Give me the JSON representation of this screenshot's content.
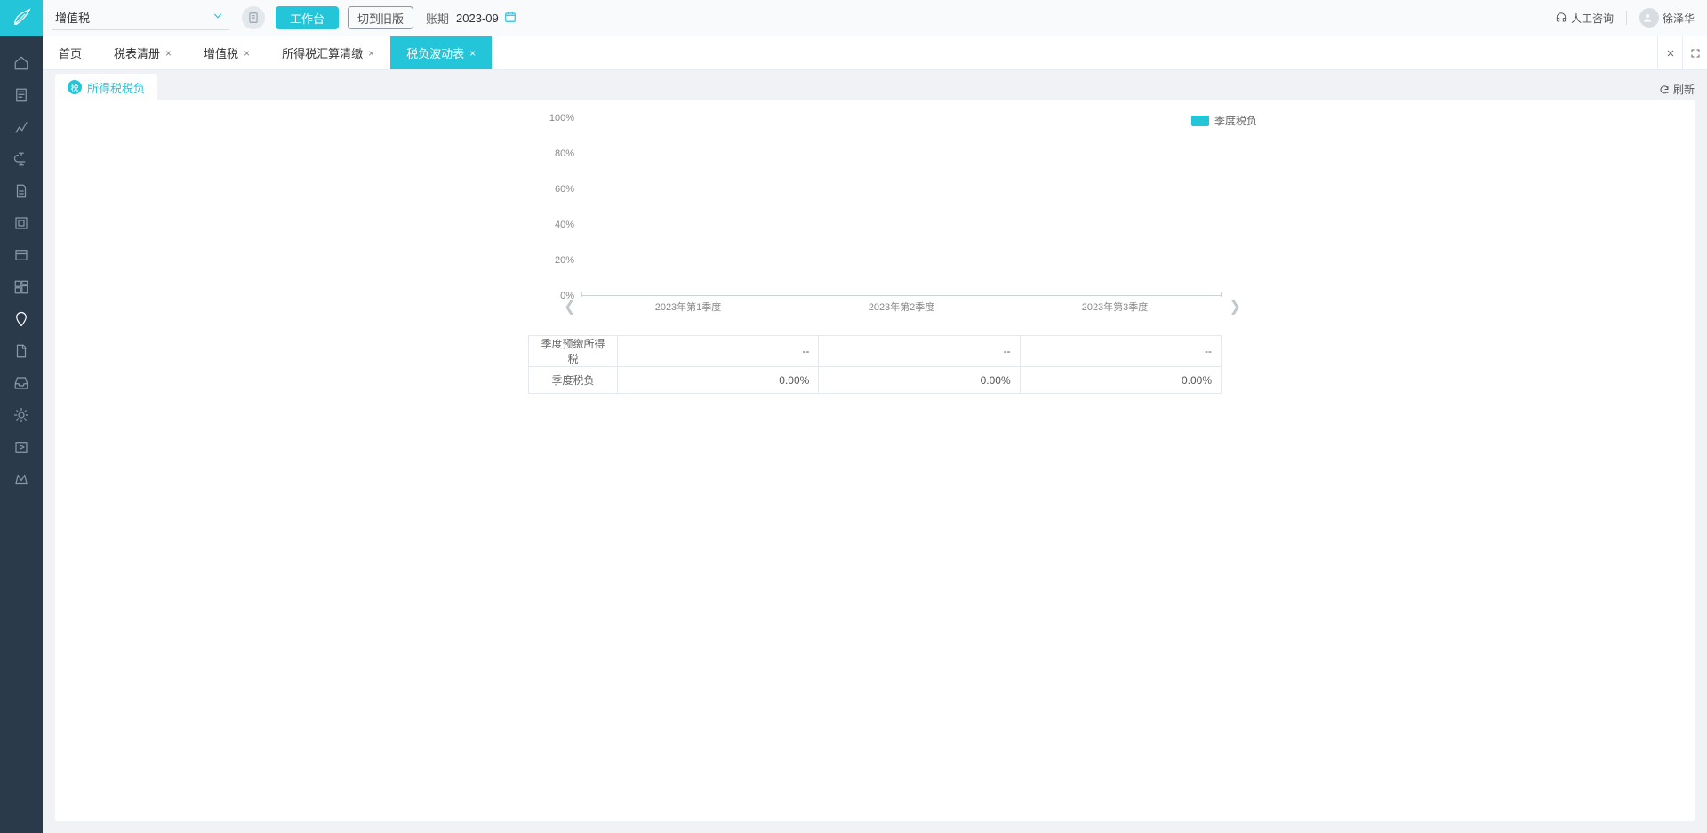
{
  "accent_color": "#24c5d9",
  "sidebar_bg": "#2b3a4a",
  "page_bg": "#f0f2f5",
  "topbar": {
    "dropdown_value": "增值税",
    "workbench_btn": "工作台",
    "switch_old_btn": "切到旧版",
    "period_label": "账期",
    "period_value": "2023-09",
    "support_link": "人工咨询",
    "user_name": "徐泽华"
  },
  "sidebar": {
    "items": [
      {
        "name": "home"
      },
      {
        "name": "form"
      },
      {
        "name": "analytics"
      },
      {
        "name": "finance"
      },
      {
        "name": "reports"
      },
      {
        "name": "wizard"
      },
      {
        "name": "template"
      },
      {
        "name": "dashboard"
      },
      {
        "name": "tax",
        "active": true
      },
      {
        "name": "transfer"
      },
      {
        "name": "inbox"
      },
      {
        "name": "settings"
      },
      {
        "name": "video"
      },
      {
        "name": "vip"
      }
    ]
  },
  "tabs": [
    {
      "label": "首页",
      "closable": false
    },
    {
      "label": "税表清册",
      "closable": true
    },
    {
      "label": "增值税",
      "closable": true
    },
    {
      "label": "所得税汇算清缴",
      "closable": true
    },
    {
      "label": "税负波动表",
      "closable": true,
      "active": true
    }
  ],
  "sub_tab": {
    "label": "所得税税负"
  },
  "refresh_label": "刷新",
  "chart": {
    "type": "bar",
    "legend_label": "季度税负",
    "legend_color": "#24c5d9",
    "ylim": [
      0,
      100
    ],
    "ytick_step": 20,
    "y_suffix": "%",
    "y_ticks": [
      "0%",
      "20%",
      "40%",
      "60%",
      "80%",
      "100%"
    ],
    "categories": [
      "2023年第1季度",
      "2023年第2季度",
      "2023年第3季度"
    ],
    "values": [
      0,
      0,
      0
    ],
    "grid_color": "#ccd3da",
    "label_color": "#888",
    "label_fontsize": 11
  },
  "table": {
    "rows": [
      {
        "header": "季度预缴所得税",
        "cells": [
          "--",
          "--",
          "--"
        ]
      },
      {
        "header": "季度税负",
        "cells": [
          "0.00%",
          "0.00%",
          "0.00%"
        ]
      }
    ]
  }
}
